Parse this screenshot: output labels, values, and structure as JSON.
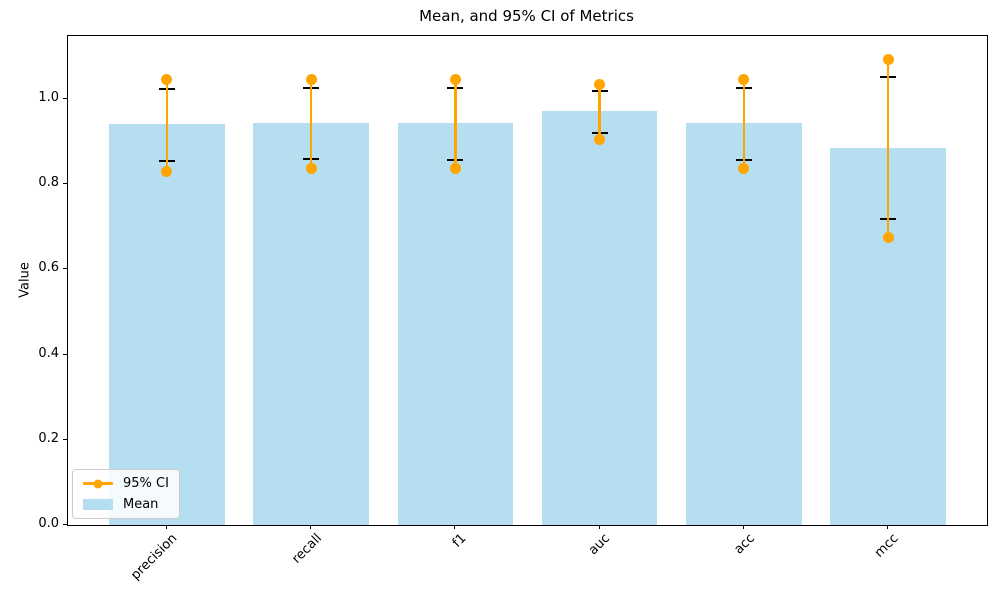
{
  "chart_data": {
    "type": "bar",
    "title": "Mean, and 95% CI of Metrics",
    "xlabel": "",
    "ylabel": "Value",
    "categories": [
      "precision",
      "recall",
      "f1",
      "auc",
      "acc",
      "mcc"
    ],
    "series": [
      {
        "name": "Mean",
        "values": [
          0.941,
          0.944,
          0.943,
          0.972,
          0.943,
          0.885
        ]
      }
    ],
    "error_bars": {
      "name": "95% CI",
      "ci_low": [
        0.831,
        0.838,
        0.837,
        0.906,
        0.838,
        0.674
      ],
      "ci_high": [
        1.045,
        1.047,
        1.045,
        1.035,
        1.045,
        1.092
      ],
      "cap_low": [
        0.854,
        0.859,
        0.857,
        0.92,
        0.857,
        0.718
      ],
      "cap_high": [
        1.023,
        1.026,
        1.025,
        1.019,
        1.025,
        1.052
      ]
    },
    "ylim": [
      0,
      1.148
    ],
    "yticks": [
      "0.0",
      "0.2",
      "0.4",
      "0.6",
      "0.8",
      "1.0"
    ],
    "ytick_values": [
      0.0,
      0.2,
      0.4,
      0.6,
      0.8,
      1.0
    ],
    "grid": false,
    "legend": {
      "position": "lower left",
      "items": [
        "95% CI",
        "Mean"
      ]
    },
    "colors": {
      "bar": "#b5def0",
      "ci": "#ffa500",
      "cap": "#000000"
    }
  }
}
